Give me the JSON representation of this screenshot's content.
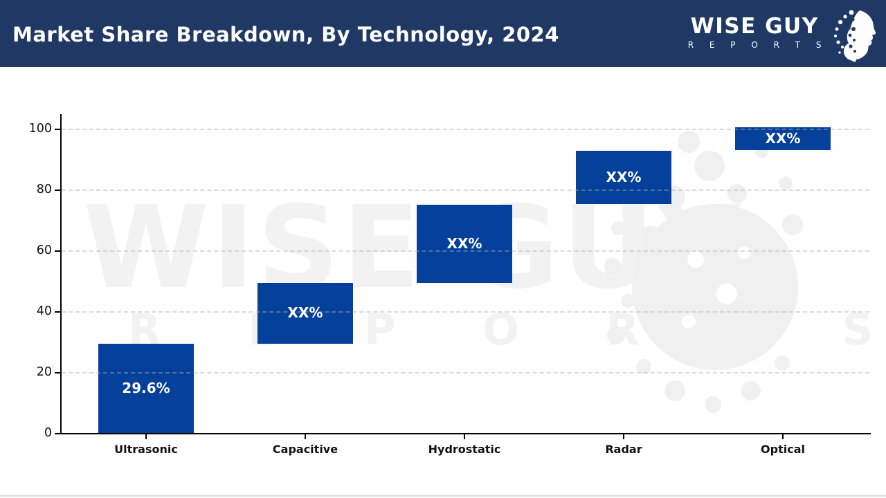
{
  "header": {
    "title": "Market Share Breakdown, By Technology, 2024",
    "background_color": "#1f3864",
    "logo": {
      "wordmark": "WISE GUY",
      "subtext": "REPORTS",
      "face_icon": "dotted-face-profile"
    }
  },
  "watermark": {
    "line1": "WISE GUY",
    "line2": "R E P O R T S"
  },
  "chart_data": {
    "type": "bar",
    "subtype": "waterfall",
    "title": "Market Share Breakdown, By Technology, 2024",
    "categories": [
      "Ultrasonic",
      "Capacitive",
      "Hydrostatic",
      "Radar",
      "Optical"
    ],
    "segments": [
      {
        "category": "Ultrasonic",
        "start": 0,
        "end": 29.6,
        "label": "29.6%"
      },
      {
        "category": "Capacitive",
        "start": 29.6,
        "end": 49.5,
        "label": "XX%"
      },
      {
        "category": "Hydrostatic",
        "start": 49.5,
        "end": 75.2,
        "label": "XX%"
      },
      {
        "category": "Radar",
        "start": 75.4,
        "end": 92.9,
        "label": "XX%"
      },
      {
        "category": "Optical",
        "start": 93.1,
        "end": 100.6,
        "label": "XX%"
      }
    ],
    "bar_color": "#05409a",
    "bar_label_color": "#ffffff",
    "yticks": [
      0,
      20,
      40,
      60,
      80,
      100
    ],
    "ylim": [
      0,
      105
    ],
    "xlabel": "",
    "ylabel": "",
    "grid": "horizontal-dashed",
    "grid_color": "#cccccc",
    "legend": "none"
  }
}
